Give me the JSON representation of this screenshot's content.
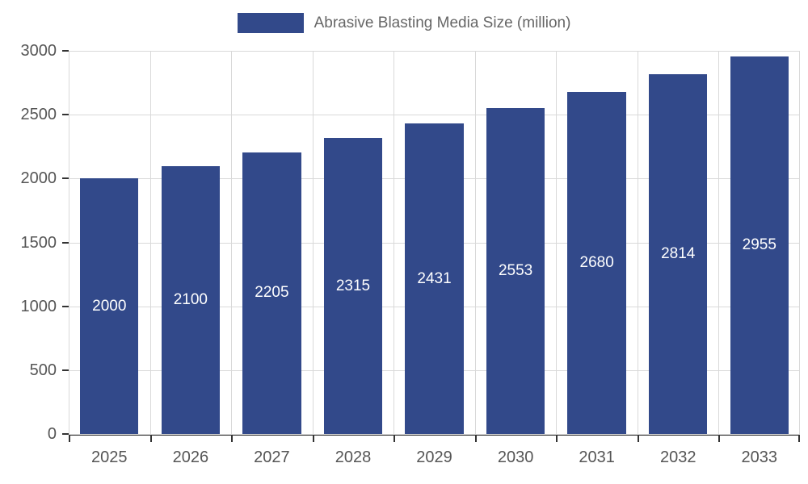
{
  "chart_data": {
    "type": "bar",
    "title": "Abrasive Blasting Media Size (million)",
    "categories": [
      "2025",
      "2026",
      "2027",
      "2028",
      "2029",
      "2030",
      "2031",
      "2032",
      "2033"
    ],
    "values": [
      2000,
      2100,
      2205,
      2315,
      2431,
      2553,
      2680,
      2814,
      2955
    ],
    "xlabel": "",
    "ylabel": "",
    "ylim": [
      0,
      3000
    ],
    "yticks": [
      0,
      500,
      1000,
      1500,
      2000,
      2500,
      3000
    ],
    "grid": true,
    "legend_position": "top-center",
    "bar_color": "#32498a",
    "value_label_color": "#ffffff",
    "axis_text_color": "#555555",
    "title_color": "#666666",
    "gridline_color": "#d9d9d9"
  }
}
